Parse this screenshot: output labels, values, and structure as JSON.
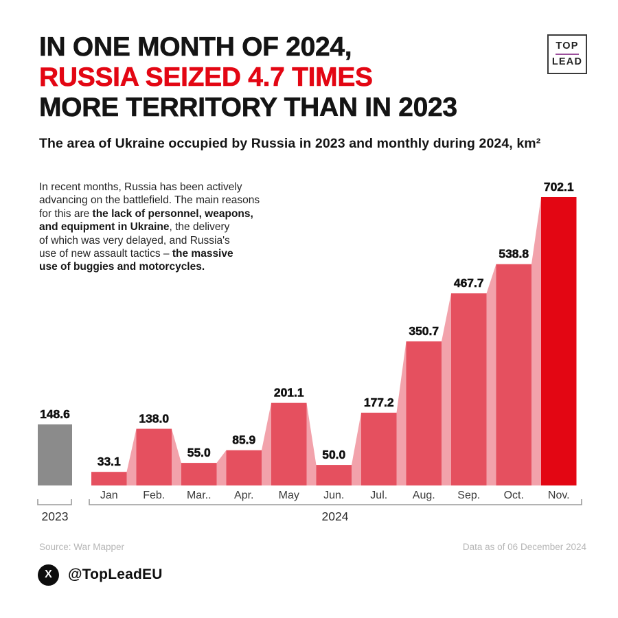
{
  "header": {
    "title_lines": [
      {
        "text": "IN ONE MONTH OF 2024,",
        "emphasis": false
      },
      {
        "text": "RUSSIA SEIZED 4.7 TIMES",
        "emphasis": true
      },
      {
        "text": "MORE TERRITORY THAN IN 2023",
        "emphasis": false
      }
    ],
    "subtitle": "The area of Ukraine occupied by Russia in 2023 and monthly during 2024, km²"
  },
  "logo": {
    "top": "TOP",
    "bottom": "LEAD"
  },
  "paragraph": {
    "lines": [
      [
        {
          "t": "In recent months, Russia has been actively",
          "b": false
        }
      ],
      [
        {
          "t": "advancing on the battlefield. The main reasons",
          "b": false
        }
      ],
      [
        {
          "t": "for this are ",
          "b": false
        },
        {
          "t": "the lack of personnel, weapons,",
          "b": true
        }
      ],
      [
        {
          "t": "and equipment in Ukraine",
          "b": true
        },
        {
          "t": ", the delivery",
          "b": false
        }
      ],
      [
        {
          "t": "of which was very delayed, and Russia's",
          "b": false
        }
      ],
      [
        {
          "t": "use of new assault tactics – ",
          "b": false
        },
        {
          "t": "the massive",
          "b": true
        }
      ],
      [
        {
          "t": "use of buggies and motorcycles.",
          "b": true
        }
      ]
    ]
  },
  "chart_data": {
    "type": "bar",
    "title": "The area of Ukraine occupied by Russia in 2023 and monthly during 2024, km²",
    "categories": [
      "Jan",
      "Feb.",
      "Mar..",
      "Apr.",
      "May",
      "Jun.",
      "Jul.",
      "Aug.",
      "Sep.",
      "Oct.",
      "Nov."
    ],
    "values": [
      33.1,
      138.0,
      55.0,
      85.9,
      201.1,
      50.0,
      177.2,
      350.7,
      467.7,
      538.8,
      702.1
    ],
    "value_labels": [
      "33.1",
      "138.0",
      "55.0",
      "85.9",
      "201.1",
      "50.0",
      "177.2",
      "350.7",
      "467.7",
      "538.8",
      "702.1"
    ],
    "group_label": "2024",
    "baseline_bar": {
      "category": "2023",
      "value": 148.6,
      "value_label": "148.6",
      "color": "#8b8b8b"
    },
    "bar_color": "#e5505f",
    "connector_color": "#f2a2ab",
    "highlight_color": "#e30613",
    "highlight_index": 10,
    "ylim": [
      0,
      702.1
    ],
    "grid": false,
    "legend": false,
    "xlabel": "",
    "ylabel": "km²"
  },
  "footer": {
    "source": "Source: War Mapper",
    "data_note": "Data as of 06 December 2024",
    "handle": "@TopLeadEU",
    "x_glyph": "X"
  },
  "colors": {
    "accent_red": "#e30613",
    "bar_red": "#e5505f",
    "connector_pink": "#f2a2ab",
    "gray_bar": "#8b8b8b",
    "logo_line_purple": "#9b4f9b",
    "footer_gray": "#b5b5b5"
  }
}
